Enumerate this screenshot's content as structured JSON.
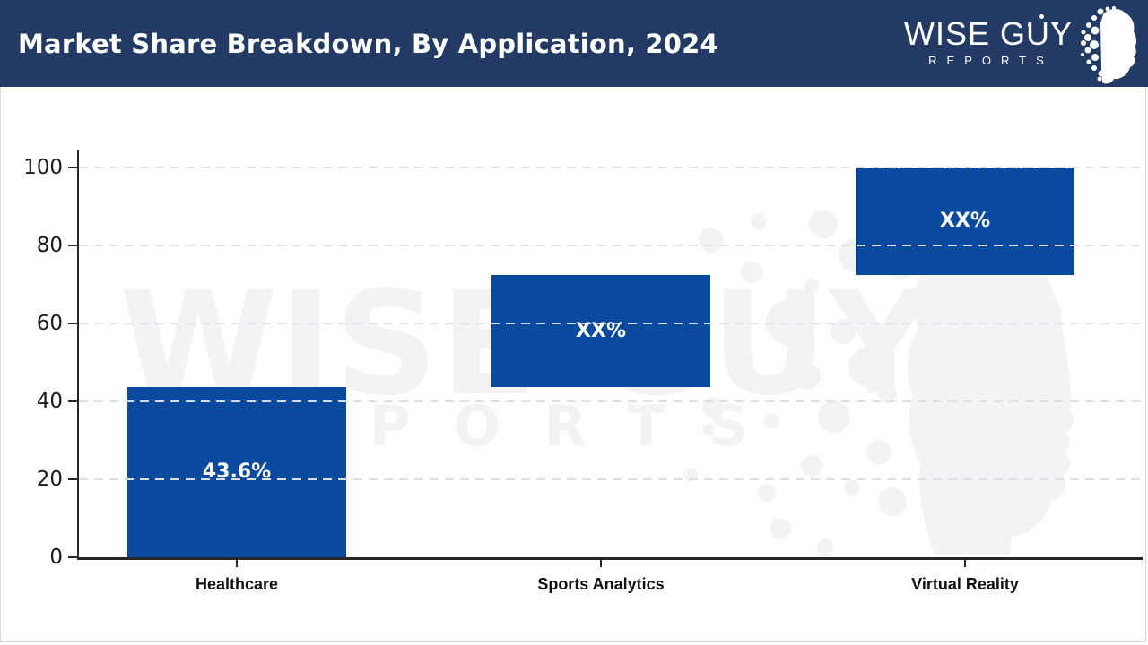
{
  "header": {
    "title": "Market Share Breakdown, By Application, 2024",
    "logo": {
      "line1": "WISE GUY",
      "line2": "REPORTS"
    }
  },
  "watermark": {
    "line1": "WISE GUY",
    "line2": "REPORTS"
  },
  "chart_data": {
    "type": "bar",
    "variant": "waterfall",
    "title": "Market Share Breakdown, By Application, 2024",
    "categories": [
      "Healthcare",
      "Sports Analytics",
      "Virtual Reality"
    ],
    "bars": [
      {
        "category": "Healthcare",
        "start": 0,
        "end": 43.6,
        "label": "43.6%"
      },
      {
        "category": "Sports Analytics",
        "start": 43.6,
        "end": 72.4,
        "label": "XX%"
      },
      {
        "category": "Virtual Reality",
        "start": 72.4,
        "end": 100,
        "label": "XX%"
      }
    ],
    "xlabel": "",
    "ylabel": "",
    "ylim": [
      0,
      104
    ],
    "yticks": [
      0,
      20,
      40,
      60,
      80,
      100
    ],
    "grid": "horizontal-dashed",
    "legend": "none",
    "bar_color": "#0a4a9e",
    "value_label_color": "#ffffff"
  },
  "colors": {
    "header_bg": "#223a64",
    "bar": "#0a4a9e",
    "grid": "#dcdfe3",
    "axis": "#262626",
    "watermark": "#f2f3f5"
  }
}
